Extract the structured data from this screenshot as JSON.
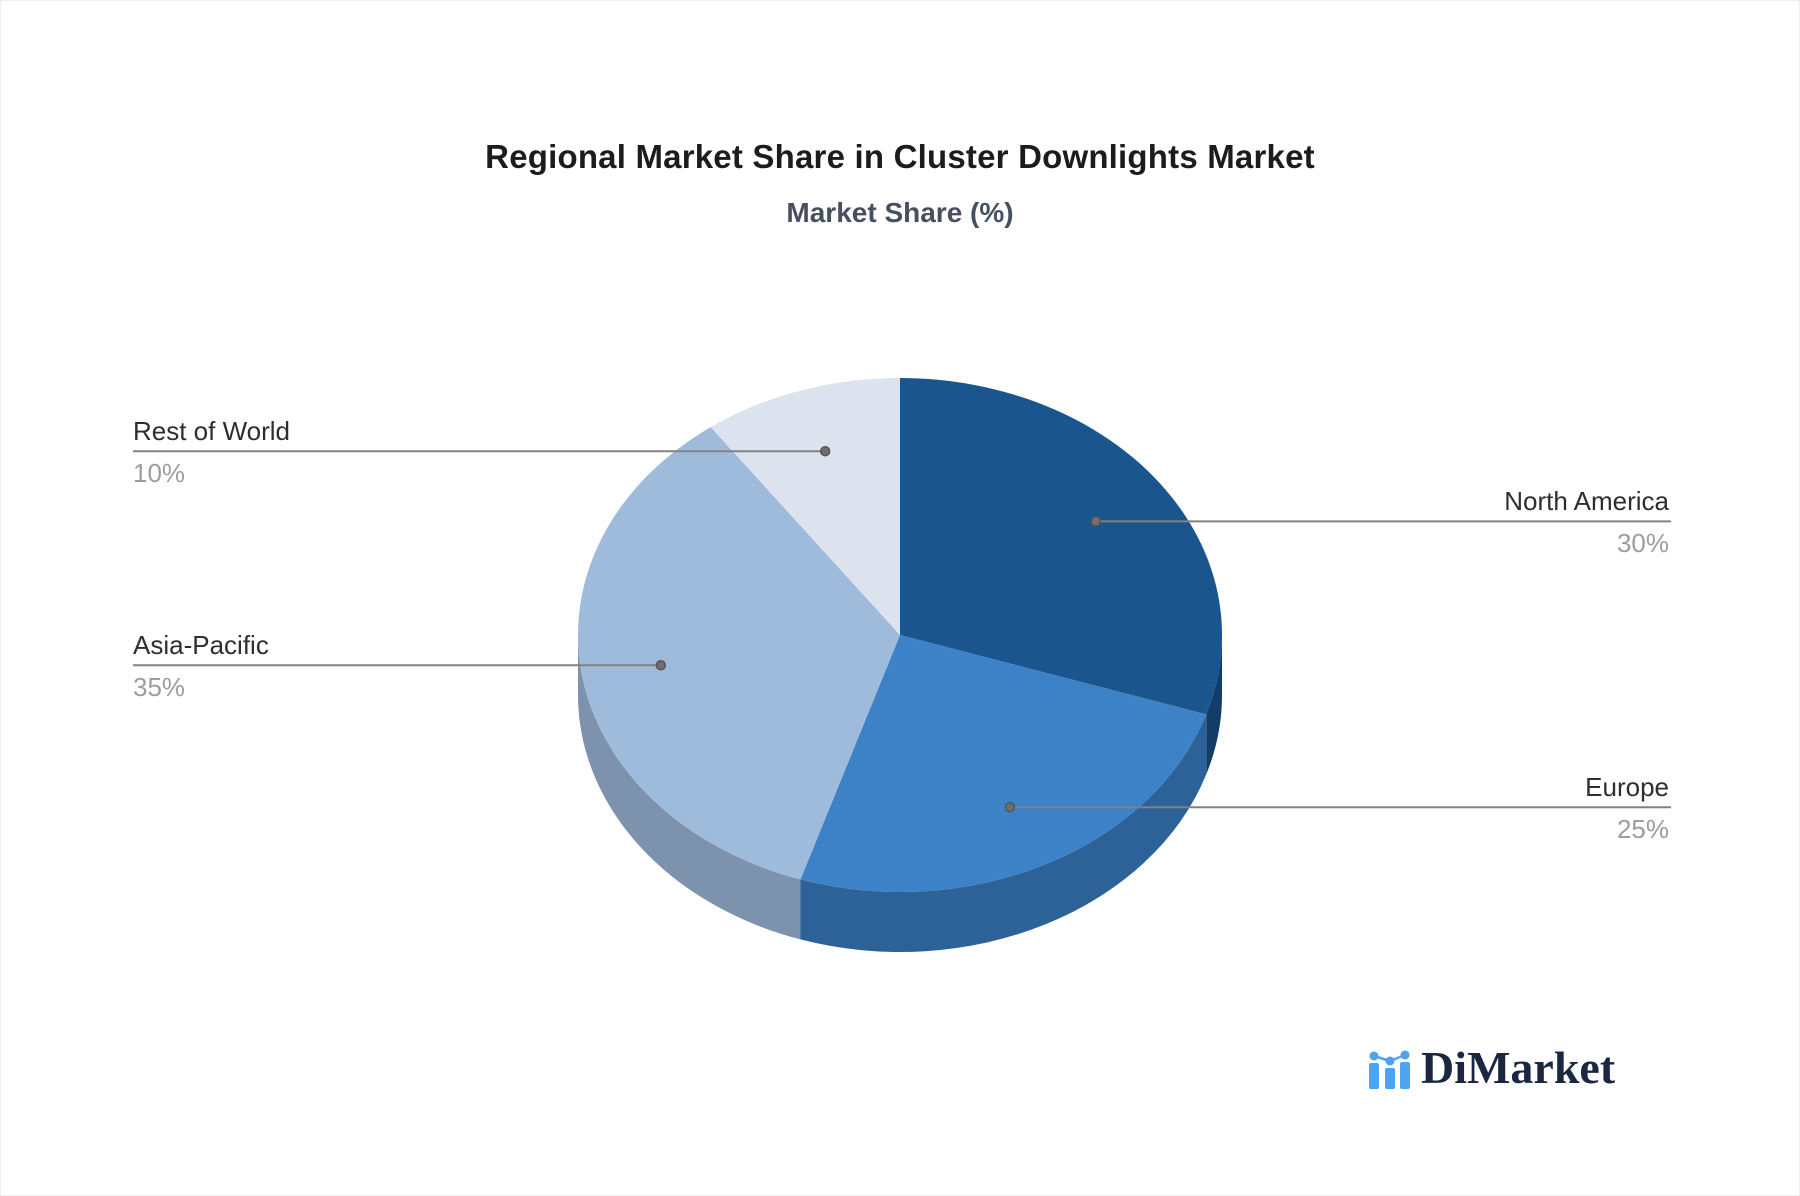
{
  "title": "Regional Market Share in Cluster Downlights Market",
  "subtitle": "Market Share (%)",
  "brand": {
    "name": "DiMarket",
    "icon": "bar-line-chart-icon",
    "icon_color": "#4da3ef",
    "text_color": "#1b2740"
  },
  "chart_data": {
    "type": "pie",
    "title": "Regional Market Share in Cluster Downlights Market",
    "subtitle": "Market Share (%)",
    "unit": "%",
    "effect": "3d",
    "direction": "clockwise",
    "start_angle_deg": 0,
    "legend": "none",
    "categories": [
      "North America",
      "Europe",
      "Asia-Pacific",
      "Rest of World"
    ],
    "values": [
      30,
      25,
      35,
      10
    ],
    "slices": [
      {
        "label": "North America",
        "value": 30,
        "display": "30%",
        "color": "#1a558d",
        "side_color": "#123d69"
      },
      {
        "label": "Europe",
        "value": 25,
        "display": "25%",
        "color": "#3d82c6",
        "side_color": "#2c6298"
      },
      {
        "label": "Asia-Pacific",
        "value": 35,
        "display": "35%",
        "color": "#9fbbdc",
        "side_color": "#7d93ad"
      },
      {
        "label": "Rest of World",
        "value": 10,
        "display": "10%",
        "color": "#dce3ef",
        "side_color": "#b9c5d8"
      }
    ],
    "label_color": "#2e2e2e",
    "value_color": "#9d9d9d",
    "leader_line_color": "#828282",
    "leader_dot_color": "#6f6f6f"
  }
}
